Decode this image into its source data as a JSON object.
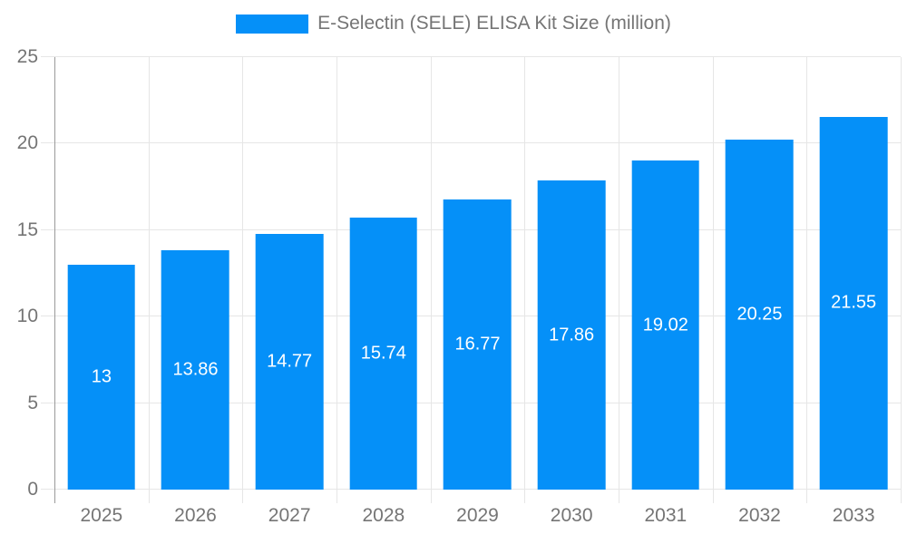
{
  "legend": {
    "label": "E-Selectin (SELE) ELISA Kit Size (million)"
  },
  "colors": {
    "bar": "#0590f8",
    "grid": "#e6e6e6",
    "axis_line": "#9a9a9a",
    "axis_text": "#757575",
    "bar_label_text": "#ffffff"
  },
  "chart_data": {
    "type": "bar",
    "title": "E-Selectin (SELE) ELISA Kit Size (million)",
    "categories": [
      "2025",
      "2026",
      "2027",
      "2028",
      "2029",
      "2030",
      "2031",
      "2032",
      "2033"
    ],
    "values": [
      13,
      13.86,
      14.77,
      15.74,
      16.77,
      17.86,
      19.02,
      20.25,
      21.55
    ],
    "value_labels": [
      "13",
      "13.86",
      "14.77",
      "15.74",
      "16.77",
      "17.86",
      "19.02",
      "20.25",
      "21.55"
    ],
    "xlabel": "",
    "ylabel": "",
    "ylim": [
      0,
      25
    ],
    "yticks": [
      0,
      5,
      10,
      15,
      20,
      25
    ],
    "grid": "on",
    "legend_position": "top-center"
  }
}
